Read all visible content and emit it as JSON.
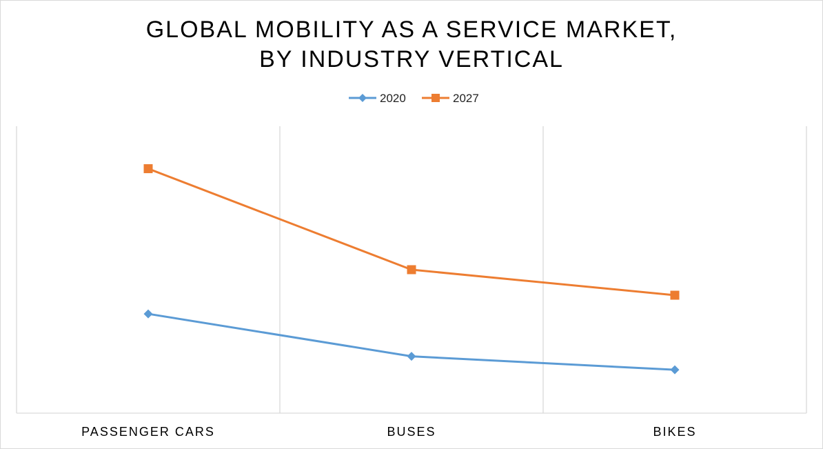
{
  "chart_data": {
    "type": "line",
    "title_lines": [
      "GLOBAL MOBILITY AS A SERVICE MARKET,",
      "BY INDUSTRY VERTICAL"
    ],
    "categories": [
      "PASSENGER CARS",
      "BUSES",
      "BIKES"
    ],
    "series": [
      {
        "name": "2020",
        "values": [
          34.6,
          19.8,
          15.1
        ],
        "color": "#5b9bd5",
        "marker": "diamond"
      },
      {
        "name": "2027",
        "values": [
          85.2,
          50.0,
          41.1
        ],
        "color": "#ed7d31",
        "marker": "square"
      }
    ],
    "ylim": [
      0,
      100
    ],
    "grid": "vertical",
    "legend": "top-center"
  }
}
